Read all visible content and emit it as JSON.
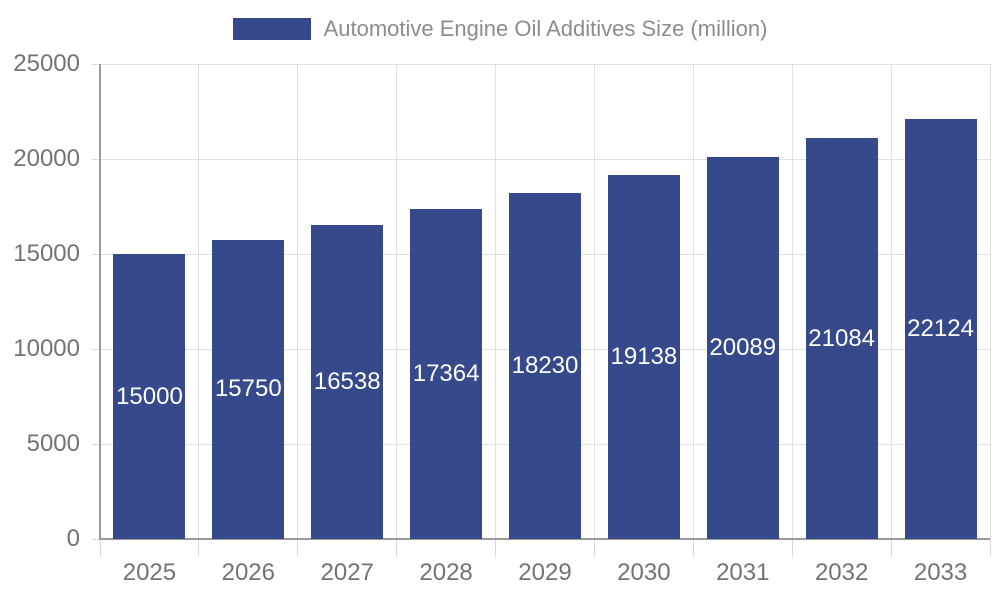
{
  "chart_data": {
    "type": "bar",
    "title": "Automotive Engine Oil Additives Size (million)",
    "series": [
      {
        "name": "Automotive Engine Oil Additives Size (million)",
        "values": [
          15000,
          15750,
          16538,
          17364,
          18230,
          19138,
          20089,
          21084,
          22124
        ]
      }
    ],
    "categories": [
      "2025",
      "2026",
      "2027",
      "2028",
      "2029",
      "2030",
      "2031",
      "2032",
      "2033"
    ],
    "xlabel": "",
    "ylabel": "",
    "ylim": [
      0,
      25000
    ],
    "yticks": [
      0,
      5000,
      10000,
      15000,
      20000,
      25000
    ],
    "grid": true,
    "legend_position": "top",
    "value_labels": "inside-center"
  },
  "colors": {
    "bar": "#36498b",
    "value_label": "#ffffff",
    "axis_label": "#737373",
    "legend_text": "#8c8c8c",
    "axis_line": "#9a9a9a",
    "gridline": "#e0e0e0",
    "tick": "#d8d8d8",
    "background": "#ffffff"
  }
}
